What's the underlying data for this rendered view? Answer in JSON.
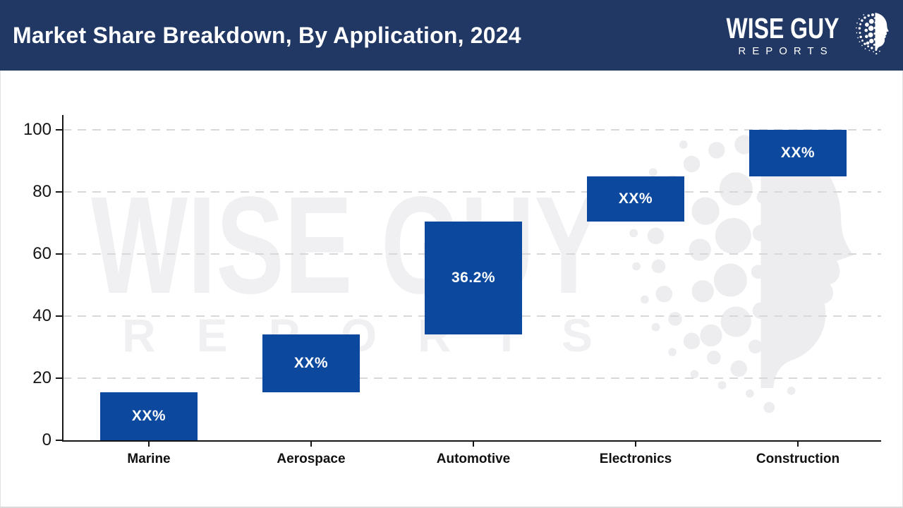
{
  "header": {
    "title": "Market Share Breakdown, By Application, 2024",
    "brand": {
      "line1": "WISE GUY",
      "line2": "REPORTS"
    }
  },
  "watermark": {
    "line1": "WISE GUY",
    "line2": "REPORTS"
  },
  "chart_data": {
    "type": "bar",
    "subtype": "waterfall",
    "title": "Market Share Breakdown, By Application, 2024",
    "categories": [
      "Marine",
      "Aerospace",
      "Automotive",
      "Electronics",
      "Construction"
    ],
    "segments": [
      {
        "category": "Marine",
        "start": 0,
        "end": 15.5,
        "label": "XX%"
      },
      {
        "category": "Aerospace",
        "start": 15.5,
        "end": 34.2,
        "label": "XX%"
      },
      {
        "category": "Automotive",
        "start": 34.2,
        "end": 70.4,
        "label": "36.2%"
      },
      {
        "category": "Electronics",
        "start": 70.4,
        "end": 85.0,
        "label": "XX%"
      },
      {
        "category": "Construction",
        "start": 85.0,
        "end": 100.0,
        "label": "XX%"
      }
    ],
    "y_axis": {
      "min": 0,
      "max": 100,
      "ticks": [
        0,
        20,
        40,
        60,
        80,
        100
      ]
    },
    "xlabel": "",
    "ylabel": "",
    "grid": "dashed-horizontal",
    "legend": "none",
    "bar_color": "#0b489e",
    "bar_label_color": "#ffffff"
  },
  "colors": {
    "header_bg": "#213764",
    "header_text": "#ffffff",
    "watermark": "#f0f0f3",
    "grid": "#d8d8d8",
    "axis": "#161616"
  }
}
